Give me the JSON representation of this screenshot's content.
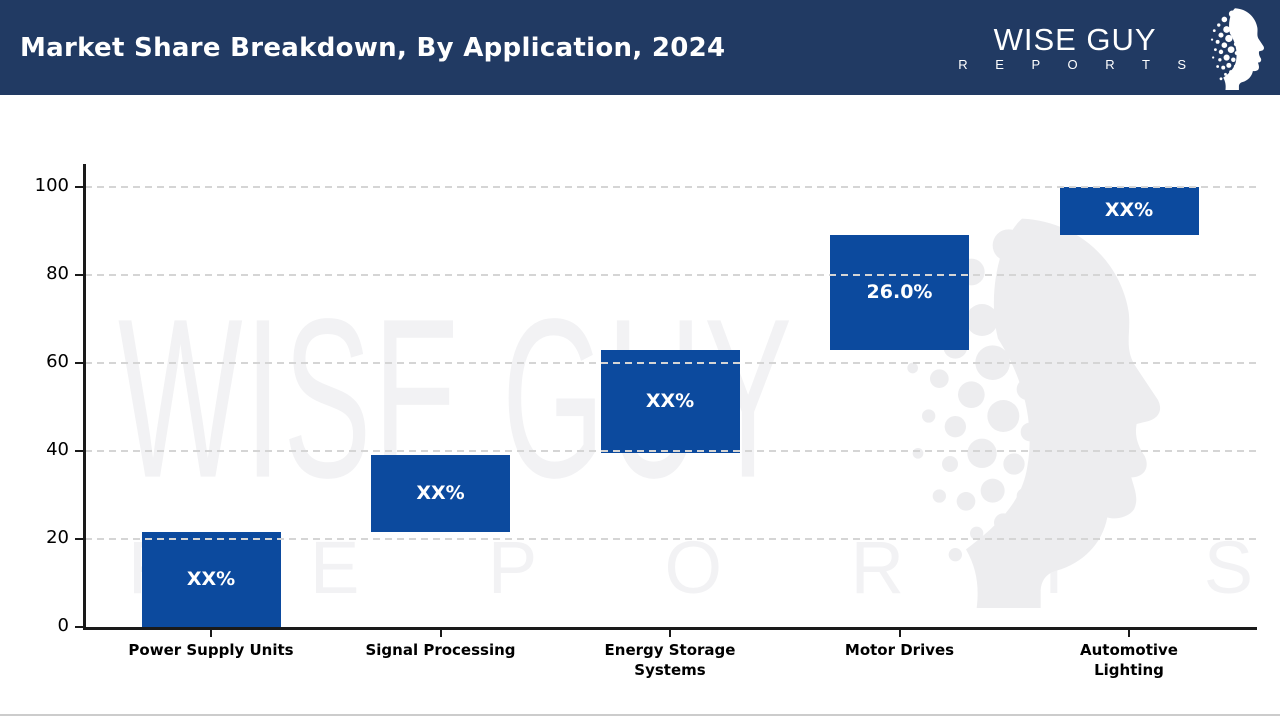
{
  "header": {
    "title": "Market Share Breakdown, By Application, 2024",
    "background_color": "#213a63",
    "logo": {
      "wordmark": "WISE GUY",
      "subtext": "R E P O R T S"
    }
  },
  "watermark": {
    "line1": "WISE GUY",
    "line2": "R E P O R T S"
  },
  "chart_data": {
    "type": "bar",
    "variant": "waterfall",
    "title": "Market Share Breakdown, By Application, 2024",
    "xlabel": "",
    "ylabel": "",
    "ylim": [
      0,
      105
    ],
    "yticks": [
      0,
      20,
      40,
      60,
      80,
      100
    ],
    "grid": {
      "axis": "y",
      "style": "dashed",
      "color": "#d5d5d5",
      "over_bars": true
    },
    "bar_color": "#0c4a9e",
    "bar_label_color": "#ffffff",
    "categories": [
      "Power Supply Units",
      "Signal Processing",
      "Energy Storage Systems",
      "Motor Drives",
      "Automotive Lighting"
    ],
    "category_lines": [
      [
        "Power Supply Units"
      ],
      [
        "Signal Processing"
      ],
      [
        "Energy Storage",
        "Systems"
      ],
      [
        "Motor Drives"
      ],
      [
        "Automotive",
        "Lighting"
      ]
    ],
    "segments": [
      {
        "category": "Power Supply Units",
        "start": 0,
        "end": 21.5,
        "value": 21.5,
        "label": "XX%"
      },
      {
        "category": "Signal Processing",
        "start": 21.5,
        "end": 39,
        "value": 17.5,
        "label": "XX%"
      },
      {
        "category": "Energy Storage Systems",
        "start": 39.5,
        "end": 63,
        "value": 23.5,
        "label": "XX%"
      },
      {
        "category": "Motor Drives",
        "start": 63,
        "end": 89,
        "value": 26.0,
        "label": "26.0%"
      },
      {
        "category": "Automotive Lighting",
        "start": 89,
        "end": 100,
        "value": 11.0,
        "label": "XX%"
      }
    ]
  }
}
